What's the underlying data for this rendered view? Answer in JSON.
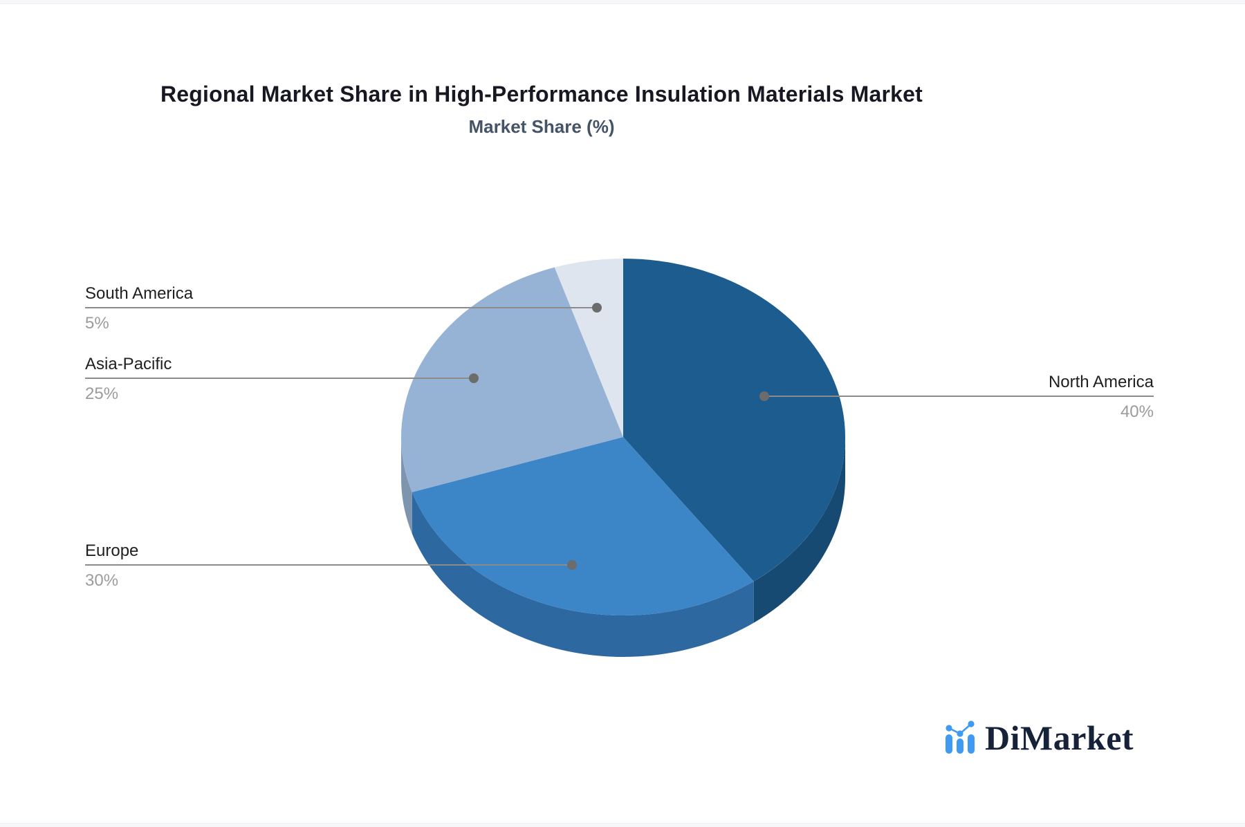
{
  "page": {
    "title": "Regional Market Share in High-Performance Insulation Materials Market",
    "subtitle": "Market Share (%)"
  },
  "logo": {
    "text": "DiMarket"
  },
  "colors": {
    "leader_line": "#8b8b8b",
    "leader_dot": "#6c6c6c",
    "title_text": "#181822",
    "subtitle_text": "#455368",
    "label_name_text": "#1f1f1f",
    "label_pct_text": "#9b9b9b"
  },
  "chart_data": {
    "type": "pie",
    "style": "3d",
    "title": "Regional Market Share in High-Performance Insulation Materials Market",
    "subtitle": "Market Share (%)",
    "unit": "%",
    "start_angle_deg": 0,
    "direction": "clockwise",
    "categories": [
      "North America",
      "Europe",
      "Asia-Pacific",
      "South America"
    ],
    "values": [
      40,
      30,
      25,
      5
    ],
    "slices": [
      {
        "name": "North America",
        "value": 40,
        "pct_label": "40%",
        "color": "#1c5c8e",
        "side_color": "#174a73"
      },
      {
        "name": "Europe",
        "value": 30,
        "pct_label": "30%",
        "color": "#3c86c8",
        "side_color": "#2e68a1"
      },
      {
        "name": "Asia-Pacific",
        "value": 25,
        "pct_label": "25%",
        "color": "#96b3d6",
        "side_color": "#7e95af"
      },
      {
        "name": "South America",
        "value": 5,
        "pct_label": "5%",
        "color": "#dfe5ef",
        "side_color": "#c2cbd9"
      }
    ]
  }
}
